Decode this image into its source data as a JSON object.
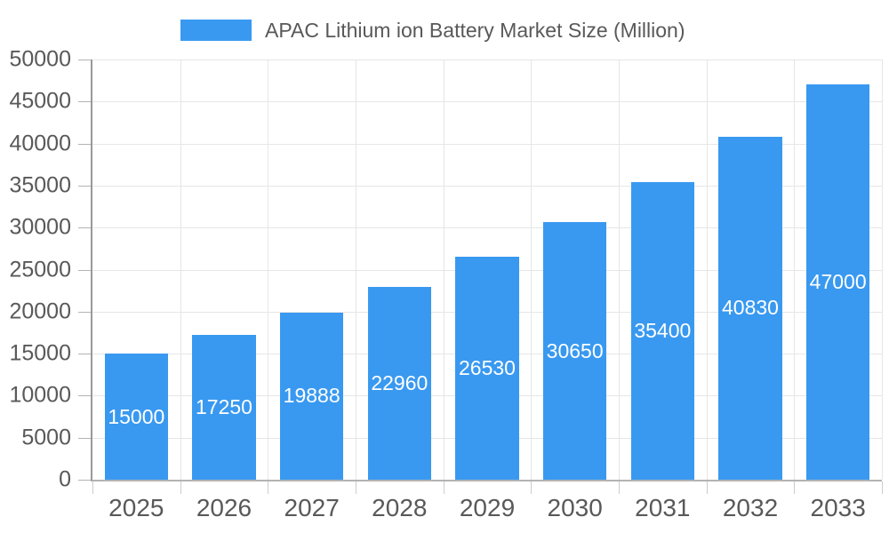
{
  "legend": {
    "label": "APAC Lithium ion Battery Market Size (Million)",
    "swatch_color": "#3999f0"
  },
  "chart_data": {
    "type": "bar",
    "title": "",
    "series_name": "APAC Lithium ion Battery Market Size (Million)",
    "categories": [
      "2025",
      "2026",
      "2027",
      "2028",
      "2029",
      "2030",
      "2031",
      "2032",
      "2033"
    ],
    "values": [
      15000,
      17250,
      19888,
      22960,
      26530,
      30650,
      35400,
      40830,
      47000
    ],
    "xlabel": "",
    "ylabel": "",
    "ylim": [
      0,
      50000
    ],
    "y_tick_step": 5000,
    "y_tick_labels": [
      "0",
      "5000",
      "10000",
      "15000",
      "20000",
      "25000",
      "30000",
      "35000",
      "40000",
      "45000",
      "50000"
    ],
    "grid": true,
    "legend_position": "top-center",
    "value_label_position": "inside-center"
  },
  "colors": {
    "bar": "#3999f0",
    "grid": "#e6e6e6",
    "y_axis_line": "#999999",
    "x_axis_line": "#b3b3b3",
    "y_tick": "#b3b3b3",
    "x_tick": "#cccccc",
    "axis_text": "#595959",
    "value_label_text": "#ffffff",
    "background": "#ffffff"
  }
}
